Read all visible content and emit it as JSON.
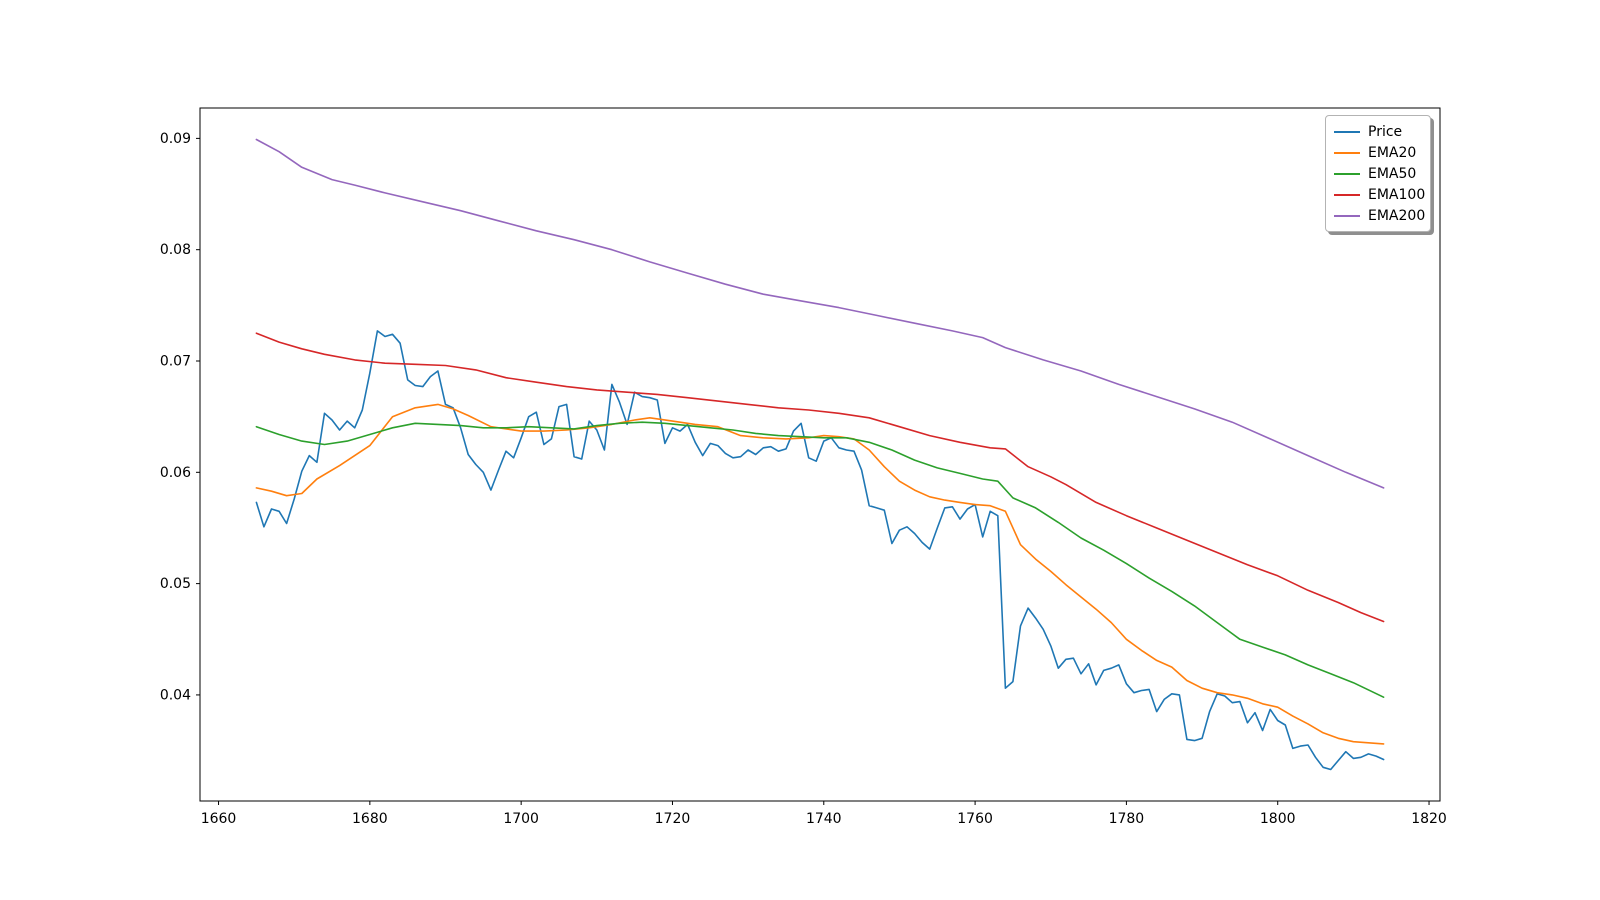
{
  "figure": {
    "background": "#ffffff",
    "axes_edge_color": "#000000",
    "tick_label_color": "#000000"
  },
  "legend": {
    "position": "upper right",
    "entries": [
      "Price",
      "EMA20",
      "EMA50",
      "EMA100",
      "EMA200"
    ]
  },
  "chart_data": {
    "type": "line",
    "title": "",
    "xlabel": "",
    "ylabel": "",
    "xlim": [
      1657.55,
      1821.45
    ],
    "ylim": [
      0.03047,
      0.09273
    ],
    "xticks": [
      1660,
      1680,
      1700,
      1720,
      1740,
      1760,
      1780,
      1800,
      1820
    ],
    "xtick_labels": [
      "1660",
      "1680",
      "1700",
      "1720",
      "1740",
      "1760",
      "1780",
      "1800",
      "1820"
    ],
    "yticks": [
      0.04,
      0.05,
      0.06,
      0.07,
      0.08,
      0.09
    ],
    "ytick_labels": [
      "0.04",
      "0.05",
      "0.06",
      "0.07",
      "0.08",
      "0.09"
    ],
    "grid": false,
    "legend_position": "upper right",
    "series": [
      {
        "name": "Price",
        "color": "#1f77b4",
        "x": [
          1665,
          1666,
          1667,
          1668,
          1669,
          1670,
          1671,
          1672,
          1673,
          1674,
          1675,
          1676,
          1677,
          1678,
          1679,
          1680,
          1681,
          1682,
          1683,
          1684,
          1685,
          1686,
          1687,
          1688,
          1689,
          1690,
          1691,
          1692,
          1693,
          1694,
          1695,
          1696,
          1697,
          1698,
          1699,
          1700,
          1701,
          1702,
          1703,
          1704,
          1705,
          1706,
          1707,
          1708,
          1709,
          1710,
          1711,
          1712,
          1713,
          1714,
          1715,
          1716,
          1717,
          1718,
          1719,
          1720,
          1721,
          1722,
          1723,
          1724,
          1725,
          1726,
          1727,
          1728,
          1729,
          1730,
          1731,
          1732,
          1733,
          1734,
          1735,
          1736,
          1737,
          1738,
          1739,
          1740,
          1741,
          1742,
          1743,
          1744,
          1745,
          1746,
          1747,
          1748,
          1749,
          1750,
          1751,
          1752,
          1753,
          1754,
          1755,
          1756,
          1757,
          1758,
          1759,
          1760,
          1761,
          1762,
          1763,
          1764,
          1765,
          1766,
          1767,
          1768,
          1769,
          1770,
          1771,
          1772,
          1773,
          1774,
          1775,
          1776,
          1777,
          1778,
          1779,
          1780,
          1781,
          1782,
          1783,
          1784,
          1785,
          1786,
          1787,
          1788,
          1789,
          1790,
          1791,
          1792,
          1793,
          1794,
          1795,
          1796,
          1797,
          1798,
          1799,
          1800,
          1801,
          1802,
          1803,
          1804,
          1805,
          1806,
          1807,
          1808,
          1809,
          1810,
          1811,
          1812,
          1813,
          1814
        ],
        "y": [
          0.0573,
          0.0551,
          0.0567,
          0.0565,
          0.0554,
          0.0576,
          0.0601,
          0.0615,
          0.0609,
          0.0653,
          0.0647,
          0.0638,
          0.0646,
          0.064,
          0.0656,
          0.0689,
          0.0727,
          0.0722,
          0.0724,
          0.0716,
          0.0683,
          0.0678,
          0.0677,
          0.0686,
          0.0691,
          0.0661,
          0.0658,
          0.064,
          0.0616,
          0.0607,
          0.06,
          0.0584,
          0.0602,
          0.0619,
          0.0613,
          0.0631,
          0.065,
          0.0654,
          0.0625,
          0.063,
          0.0659,
          0.0661,
          0.0614,
          0.0612,
          0.0646,
          0.0638,
          0.062,
          0.0679,
          0.0663,
          0.0643,
          0.0672,
          0.0668,
          0.0667,
          0.0665,
          0.0626,
          0.064,
          0.0637,
          0.0643,
          0.0627,
          0.0615,
          0.0626,
          0.0624,
          0.0617,
          0.0613,
          0.0614,
          0.062,
          0.0616,
          0.0622,
          0.0623,
          0.0619,
          0.0621,
          0.0637,
          0.0644,
          0.0613,
          0.061,
          0.0628,
          0.0631,
          0.0622,
          0.062,
          0.0619,
          0.0602,
          0.057,
          0.0568,
          0.0566,
          0.0536,
          0.0548,
          0.0551,
          0.0545,
          0.0537,
          0.0531,
          0.055,
          0.0568,
          0.0569,
          0.0558,
          0.0567,
          0.0571,
          0.0542,
          0.0565,
          0.0561,
          0.0406,
          0.0412,
          0.0462,
          0.0478,
          0.0469,
          0.0459,
          0.0444,
          0.0424,
          0.0432,
          0.0433,
          0.0419,
          0.0428,
          0.0409,
          0.0422,
          0.0424,
          0.0427,
          0.041,
          0.0402,
          0.0404,
          0.0405,
          0.0385,
          0.0396,
          0.0401,
          0.04,
          0.036,
          0.0359,
          0.0361,
          0.0385,
          0.0401,
          0.0399,
          0.0393,
          0.0394,
          0.0375,
          0.0384,
          0.0368,
          0.0387,
          0.0377,
          0.0373,
          0.0352,
          0.0354,
          0.0355,
          0.0344,
          0.0335,
          0.0333,
          0.0341,
          0.0349,
          0.0343,
          0.0344,
          0.0347,
          0.0345,
          0.0342
        ]
      },
      {
        "name": "EMA20",
        "color": "#ff7f0e",
        "x": [
          1665,
          1667,
          1669,
          1671,
          1673,
          1676,
          1680,
          1683,
          1686,
          1689,
          1691,
          1693,
          1696,
          1700,
          1703,
          1706,
          1709,
          1712,
          1715,
          1717,
          1720,
          1723,
          1726,
          1729,
          1732,
          1735,
          1738,
          1740,
          1742,
          1744,
          1746,
          1748,
          1750,
          1752,
          1754,
          1756,
          1758,
          1760,
          1762,
          1764,
          1766,
          1768,
          1770,
          1772,
          1774,
          1776,
          1778,
          1780,
          1782,
          1784,
          1786,
          1788,
          1790,
          1792,
          1794,
          1796,
          1798,
          1800,
          1802,
          1804,
          1806,
          1808,
          1810,
          1812,
          1814
        ],
        "y": [
          0.0586,
          0.0583,
          0.0579,
          0.0581,
          0.0594,
          0.0606,
          0.0624,
          0.065,
          0.0658,
          0.0661,
          0.0657,
          0.0651,
          0.0641,
          0.0637,
          0.0637,
          0.0638,
          0.064,
          0.0643,
          0.0647,
          0.0649,
          0.0646,
          0.0643,
          0.0641,
          0.0633,
          0.0631,
          0.063,
          0.0631,
          0.0633,
          0.0632,
          0.063,
          0.062,
          0.0605,
          0.0592,
          0.0584,
          0.0578,
          0.0575,
          0.0573,
          0.0571,
          0.057,
          0.0565,
          0.0535,
          0.0522,
          0.0511,
          0.0499,
          0.0488,
          0.0477,
          0.0465,
          0.045,
          0.044,
          0.0431,
          0.0425,
          0.0413,
          0.0406,
          0.0402,
          0.04,
          0.0397,
          0.0392,
          0.0389,
          0.0381,
          0.0374,
          0.0366,
          0.0361,
          0.0358,
          0.0357,
          0.0356
        ]
      },
      {
        "name": "EMA50",
        "color": "#2ca02c",
        "x": [
          1665,
          1668,
          1671,
          1674,
          1677,
          1680,
          1683,
          1686,
          1689,
          1692,
          1695,
          1698,
          1701,
          1704,
          1707,
          1710,
          1713,
          1716,
          1719,
          1722,
          1725,
          1728,
          1731,
          1734,
          1737,
          1740,
          1743,
          1746,
          1749,
          1752,
          1755,
          1758,
          1761,
          1763,
          1765,
          1768,
          1771,
          1774,
          1777,
          1780,
          1783,
          1786,
          1789,
          1792,
          1795,
          1798,
          1801,
          1804,
          1807,
          1810,
          1814
        ],
        "y": [
          0.0641,
          0.0634,
          0.0628,
          0.0625,
          0.0628,
          0.0634,
          0.064,
          0.0644,
          0.0643,
          0.0642,
          0.064,
          0.064,
          0.0641,
          0.064,
          0.0639,
          0.0642,
          0.0644,
          0.0645,
          0.0644,
          0.0642,
          0.064,
          0.0638,
          0.0635,
          0.0633,
          0.0632,
          0.0631,
          0.0631,
          0.0627,
          0.062,
          0.0611,
          0.0604,
          0.0599,
          0.0594,
          0.0592,
          0.0577,
          0.0568,
          0.0555,
          0.0541,
          0.053,
          0.0518,
          0.0505,
          0.0493,
          0.048,
          0.0465,
          0.045,
          0.0443,
          0.0436,
          0.0427,
          0.0419,
          0.0411,
          0.0398
        ]
      },
      {
        "name": "EMA100",
        "color": "#d62728",
        "x": [
          1665,
          1668,
          1671,
          1674,
          1678,
          1682,
          1686,
          1690,
          1694,
          1698,
          1702,
          1706,
          1710,
          1714,
          1718,
          1722,
          1726,
          1730,
          1734,
          1738,
          1742,
          1746,
          1750,
          1754,
          1758,
          1762,
          1764,
          1767,
          1770,
          1772,
          1776,
          1780,
          1784,
          1788,
          1792,
          1796,
          1800,
          1804,
          1808,
          1811,
          1814
        ],
        "y": [
          0.0725,
          0.0717,
          0.0711,
          0.0706,
          0.0701,
          0.0698,
          0.0697,
          0.0696,
          0.0692,
          0.0685,
          0.0681,
          0.0677,
          0.0674,
          0.0672,
          0.067,
          0.0667,
          0.0664,
          0.0661,
          0.0658,
          0.0656,
          0.0653,
          0.0649,
          0.0641,
          0.0633,
          0.0627,
          0.0622,
          0.0621,
          0.0605,
          0.0596,
          0.0589,
          0.0573,
          0.0561,
          0.055,
          0.0539,
          0.0528,
          0.0517,
          0.0507,
          0.0494,
          0.0483,
          0.0474,
          0.0466
        ]
      },
      {
        "name": "EMA200",
        "color": "#9467bd",
        "x": [
          1665,
          1668,
          1671,
          1675,
          1678,
          1682,
          1687,
          1692,
          1697,
          1702,
          1707,
          1712,
          1717,
          1722,
          1727,
          1732,
          1737,
          1742,
          1747,
          1752,
          1757,
          1761,
          1764,
          1769,
          1774,
          1779,
          1784,
          1789,
          1794,
          1799,
          1804,
          1809,
          1814
        ],
        "y": [
          0.0899,
          0.0888,
          0.0874,
          0.0863,
          0.0858,
          0.0851,
          0.0843,
          0.0835,
          0.0826,
          0.0817,
          0.0809,
          0.08,
          0.0789,
          0.0779,
          0.0769,
          0.076,
          0.0754,
          0.0748,
          0.0741,
          0.0734,
          0.0727,
          0.0721,
          0.0712,
          0.0701,
          0.0691,
          0.0679,
          0.0668,
          0.0657,
          0.0645,
          0.063,
          0.0615,
          0.06,
          0.0586
        ]
      }
    ]
  }
}
